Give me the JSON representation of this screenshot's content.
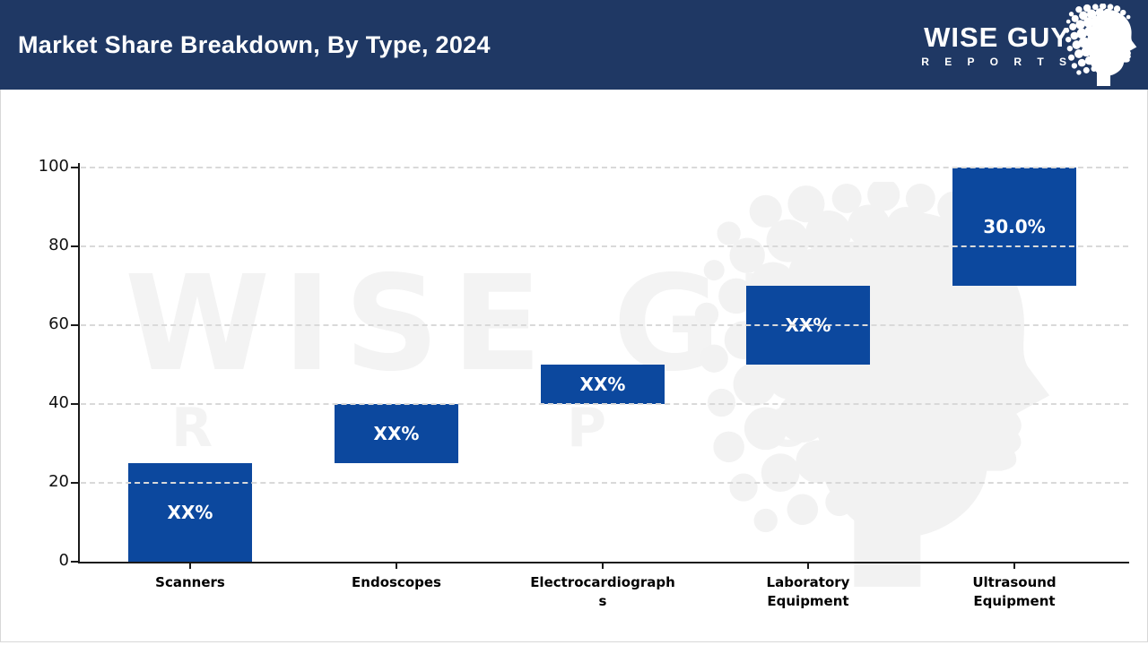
{
  "header": {
    "title": "Market Share Breakdown, By Type, 2024",
    "logo": {
      "line1": "WISE GUY",
      "line2": "R E P O R T S"
    }
  },
  "watermark": {
    "line1": "WISE GUY",
    "line2": "R E P O R T S"
  },
  "chart_data": {
    "type": "bar",
    "subtype": "waterfall",
    "title": "Market Share Breakdown, By Type, 2024",
    "categories": [
      "Scanners",
      "Endoscopes",
      "Electrocardiographs",
      "Laboratory Equipment",
      "Ultrasound Equipment"
    ],
    "category_display_lines": [
      [
        "Scanners"
      ],
      [
        "Endoscopes"
      ],
      [
        "Electrocardiograph",
        "s"
      ],
      [
        "Laboratory",
        "Equipment"
      ],
      [
        "Ultrasound",
        "Equipment"
      ]
    ],
    "segments": [
      {
        "category": "Scanners",
        "start": 0,
        "end": 25,
        "label": "XX%"
      },
      {
        "category": "Endoscopes",
        "start": 25,
        "end": 40,
        "label": "XX%"
      },
      {
        "category": "Electrocardiographs",
        "start": 40,
        "end": 50,
        "label": "XX%"
      },
      {
        "category": "Laboratory Equipment",
        "start": 50,
        "end": 70,
        "label": "XX%"
      },
      {
        "category": "Ultrasound Equipment",
        "start": 70,
        "end": 100,
        "label": "30.0%"
      }
    ],
    "xlabel": "",
    "ylabel": "",
    "ylim": [
      0,
      100
    ],
    "yticks": [
      0,
      20,
      40,
      60,
      80,
      100
    ],
    "grid": "horizontal-dashed-over-bars",
    "legend": "none",
    "colors": {
      "bar": "#0c489e",
      "header_bg": "#1f3864",
      "grid": "#d9d9d9",
      "axis": "#1a1a1a",
      "bar_label_text": "#ffffff",
      "watermark": "#f3f3f3"
    }
  }
}
